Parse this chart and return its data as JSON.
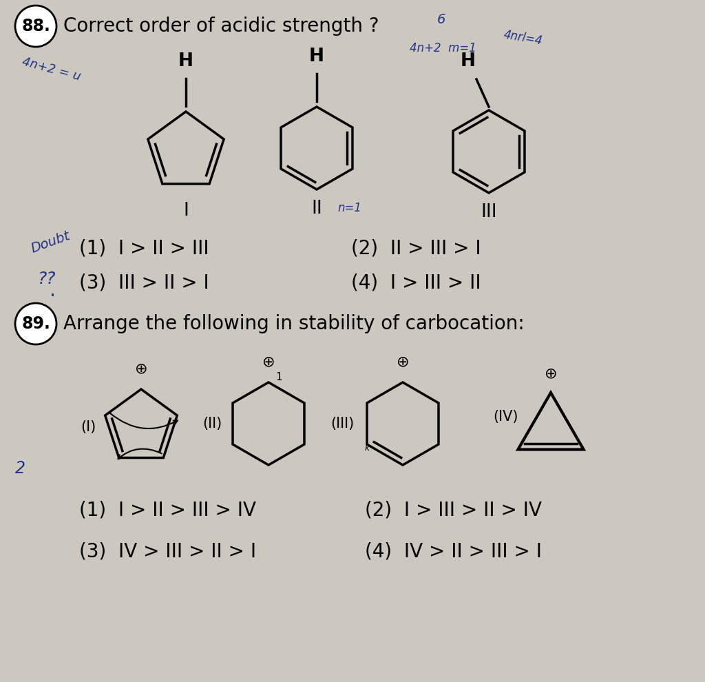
{
  "bg_color": "#ccc8c0",
  "q88_options": [
    "(1)  I > II > III",
    "(2)  II > III > I",
    "(3)  III > II > I",
    "(4)  I > III > II"
  ],
  "q89_options": [
    "(1)  I > II > III > IV",
    "(2)  I > III > II > IV",
    "(3)  IV > III > II > I",
    "(4)  IV > II > III > I"
  ]
}
